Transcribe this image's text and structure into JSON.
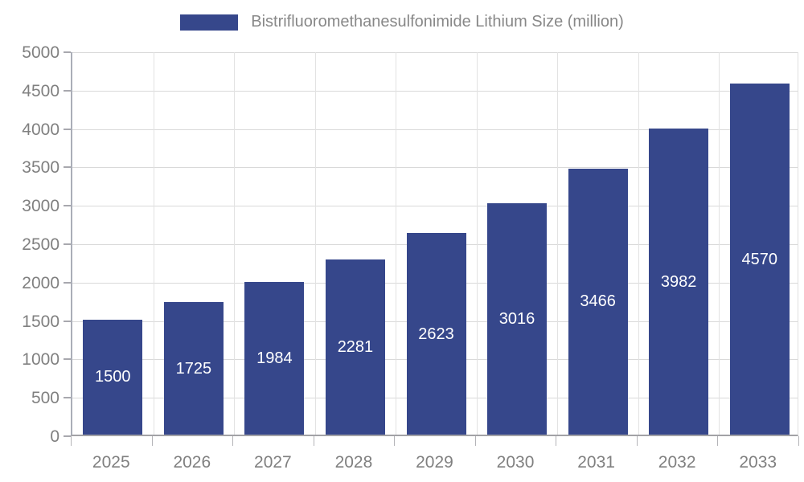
{
  "legend": {
    "label": "Bistrifluoromethanesulfonimide Lithium Size (million)",
    "swatch_color": "#36478B"
  },
  "chart_data": {
    "type": "bar",
    "title": "Bistrifluoromethanesulfonimide Lithium Size (million)",
    "categories": [
      "2025",
      "2026",
      "2027",
      "2028",
      "2029",
      "2030",
      "2031",
      "2032",
      "2033"
    ],
    "values": [
      1500,
      1725,
      1984,
      2281,
      2623,
      3016,
      3466,
      3982,
      4570
    ],
    "xlabel": "",
    "ylabel": "",
    "ylim": [
      0,
      5000
    ],
    "yticks": [
      0,
      500,
      1000,
      1500,
      2000,
      2500,
      3000,
      3500,
      4000,
      4500,
      5000
    ],
    "grid": "horizontal-and-vertical",
    "legend_position": "top",
    "bar_color": "#36478B",
    "value_label_color": "#ffffff",
    "axis_text_color": "#808080"
  }
}
